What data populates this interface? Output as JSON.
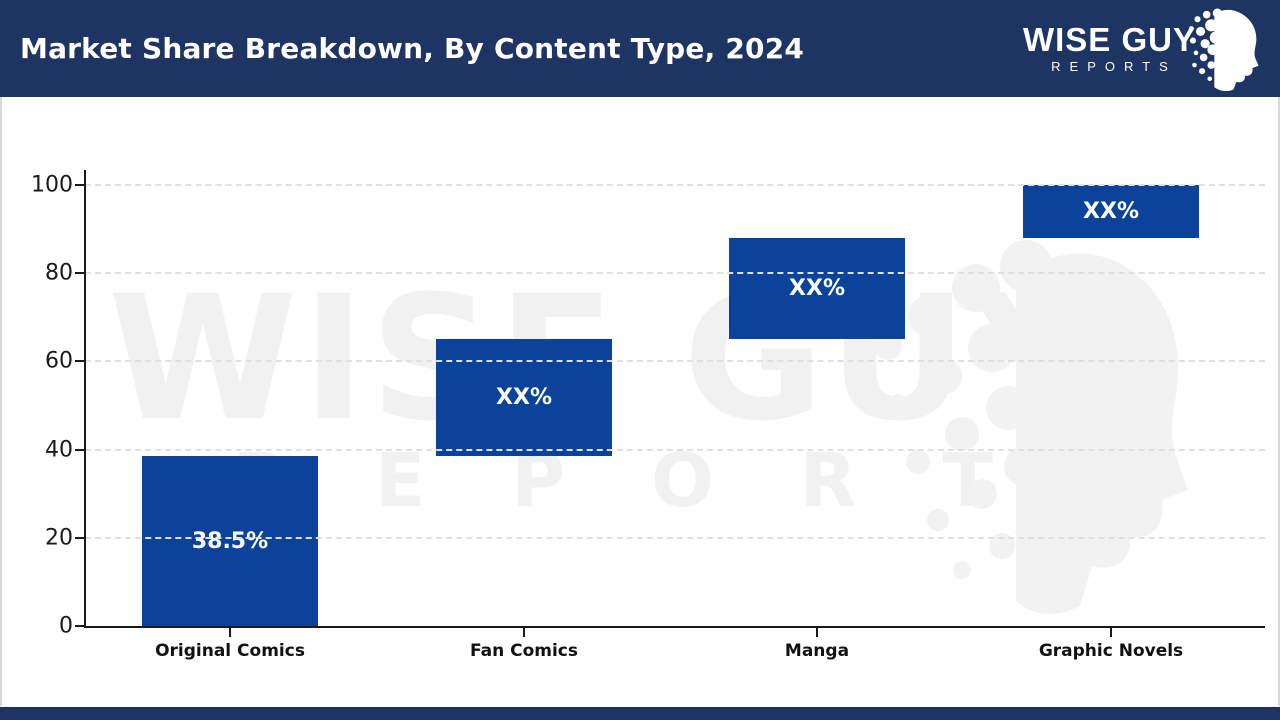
{
  "header": {
    "title": "Market Share Breakdown, By Content Type, 2024",
    "logo_line1": "WISE GUY",
    "logo_line2": "REPORTS"
  },
  "watermark": {
    "line1": "WISE GUY",
    "line2": "R E P O R T S"
  },
  "chart_data": {
    "type": "bar",
    "subtype": "floating-waterfall",
    "title": "Market Share Breakdown, By Content Type, 2024",
    "categories": [
      "Original Comics",
      "Fan Comics",
      "Manga",
      "Graphic Novels"
    ],
    "segments": [
      {
        "category": "Original Comics",
        "start": 0,
        "end": 38.5,
        "label": "38.5%"
      },
      {
        "category": "Fan Comics",
        "start": 38.5,
        "end": 65,
        "label": "XX%"
      },
      {
        "category": "Manga",
        "start": 65,
        "end": 88,
        "label": "XX%"
      },
      {
        "category": "Graphic Novels",
        "start": 88,
        "end": 100,
        "label": "XX%"
      }
    ],
    "xlabel": "",
    "ylabel": "",
    "ylim": [
      0,
      100
    ],
    "yticks": [
      0,
      20,
      40,
      60,
      80,
      100
    ],
    "grid": true,
    "legend": false,
    "bar_color": "#0a4399",
    "bar_label_color": "#ffffff",
    "gridline_color": "#e0e0e0",
    "axis_color": "#1a1a1a"
  },
  "colors": {
    "header_bg": "#1e3462",
    "footer_bg": "#1e3462",
    "watermark": "#f1f1f1",
    "frame": "#d9d9d9"
  }
}
